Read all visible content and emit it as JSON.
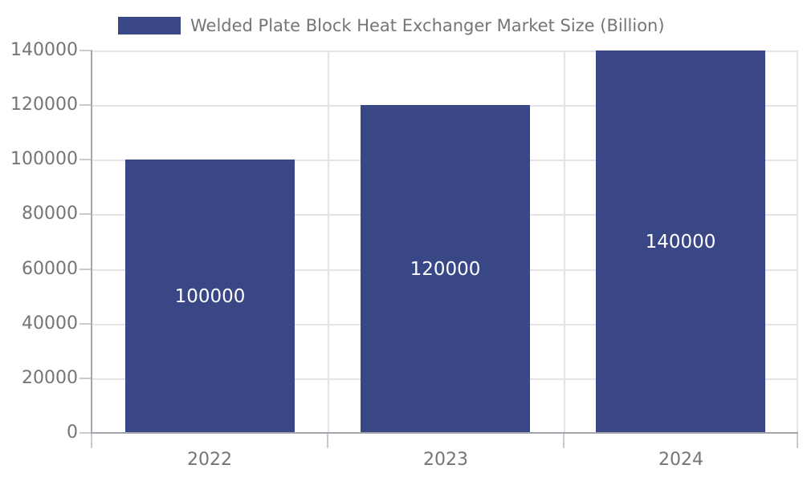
{
  "legend": {
    "label": "Welded Plate Block Heat Exchanger Market Size (Billion)"
  },
  "chart_data": {
    "type": "bar",
    "title": "Welded Plate Block Heat Exchanger Market Size (Billion)",
    "categories": [
      "2022",
      "2023",
      "2024"
    ],
    "values": [
      100000,
      120000,
      140000
    ],
    "bar_labels": [
      "100000",
      "120000",
      "140000"
    ],
    "xlabel": "",
    "ylabel": "",
    "ylim": [
      0,
      140000
    ],
    "ytick_interval": 20000,
    "yticks": [
      "0",
      "20000",
      "40000",
      "60000",
      "80000",
      "100000",
      "120000",
      "140000"
    ],
    "grid": true,
    "legend_position": "top-left",
    "bar_color": "#3A4787",
    "bar_label_color": "#FFFFFF",
    "gridline_color": "#E4E4E8",
    "axis_line_color": "#A5A5AD",
    "tick_label_color": "#757575"
  }
}
